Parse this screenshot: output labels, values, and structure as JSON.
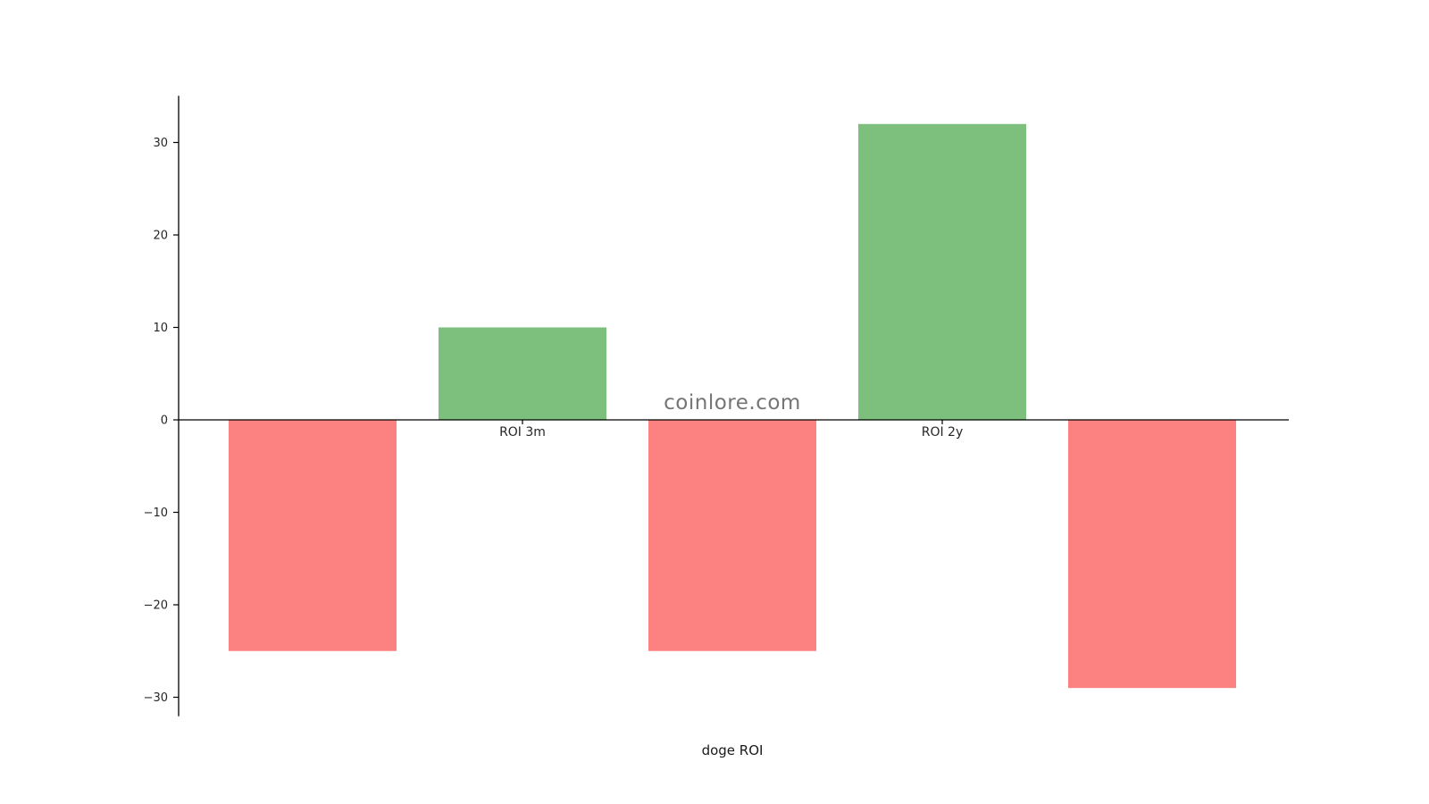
{
  "chart_data": {
    "type": "bar",
    "xlabel": "doge ROI",
    "watermark": "coinlore.com",
    "categories": [
      "",
      "ROI 3m",
      "",
      "ROI 2y",
      ""
    ],
    "values": [
      -25,
      10,
      -25,
      32,
      -29
    ],
    "positive_color": "#7dbf7d",
    "negative_color": "#fc8181",
    "y_ticks": [
      30,
      20,
      10,
      0,
      -10,
      -20,
      -30
    ],
    "ylim": [
      -32.05,
      35.05
    ],
    "grid": false,
    "legend": false,
    "axis_color": "#000000",
    "tick_label_color": "#262626",
    "watermark_color": "#757575"
  }
}
